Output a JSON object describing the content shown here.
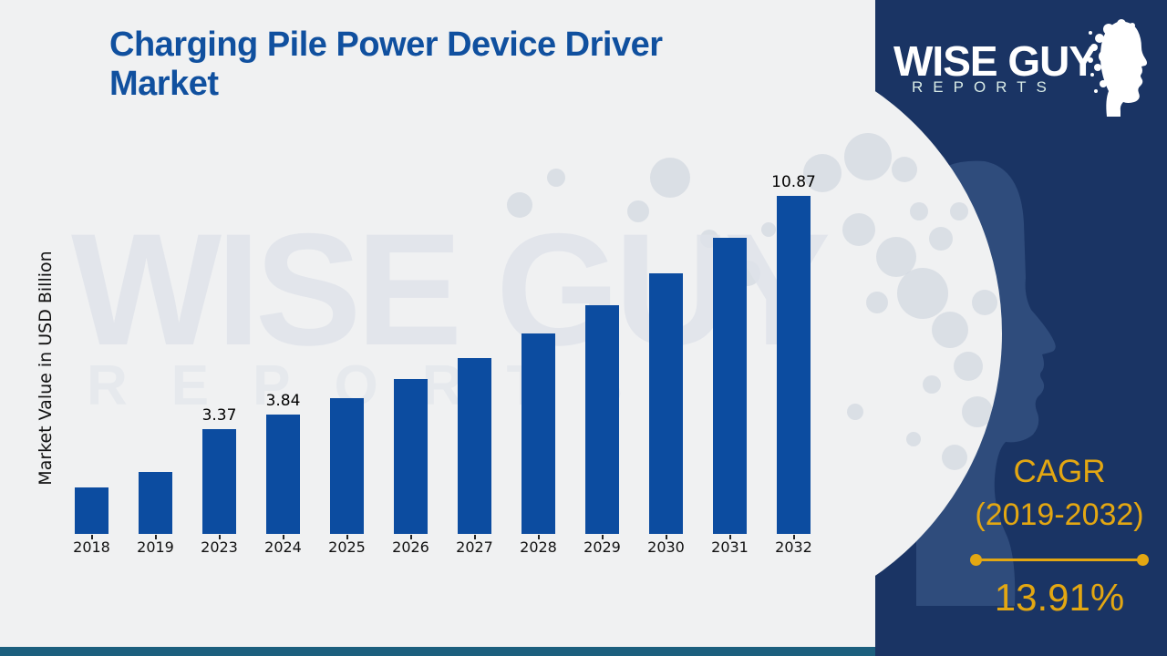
{
  "title_lines": [
    "Charging Pile Power Device Driver",
    "Market"
  ],
  "ylabel": "Market Value in USD Billion",
  "watermark": {
    "line1": "WISE GUY",
    "line2": "REPORTS"
  },
  "logo": {
    "line1": "WISE GUY",
    "line2": "REPORTS"
  },
  "cagr": {
    "label": "CAGR",
    "range": "(2019-2032)",
    "value": "13.91%"
  },
  "colors": {
    "bar": "#0c4ca0",
    "navy_panel": "#1a3464",
    "gold": "#e3a712",
    "bottom_bar": "#1c5f7e",
    "title_text": "#10509f",
    "background": "#f0f1f2"
  },
  "chart_data": {
    "type": "bar",
    "title": "Charging Pile Power Device Driver Market",
    "categories": [
      "2018",
      "2019",
      "2023",
      "2024",
      "2025",
      "2026",
      "2027",
      "2028",
      "2029",
      "2030",
      "2031",
      "2032"
    ],
    "values": [
      1.5,
      2.0,
      3.37,
      3.84,
      4.37,
      4.98,
      5.67,
      6.46,
      7.36,
      8.38,
      9.54,
      10.87
    ],
    "data_labels": {
      "2023": "3.37",
      "2024": "3.84",
      "2032": "10.87"
    },
    "xlabel": "",
    "ylabel": "Market Value in USD Billion",
    "ylim": [
      0,
      11.5
    ],
    "grid": false,
    "legend": null,
    "cagr_note": "CAGR (2019-2032) 13.91%"
  }
}
